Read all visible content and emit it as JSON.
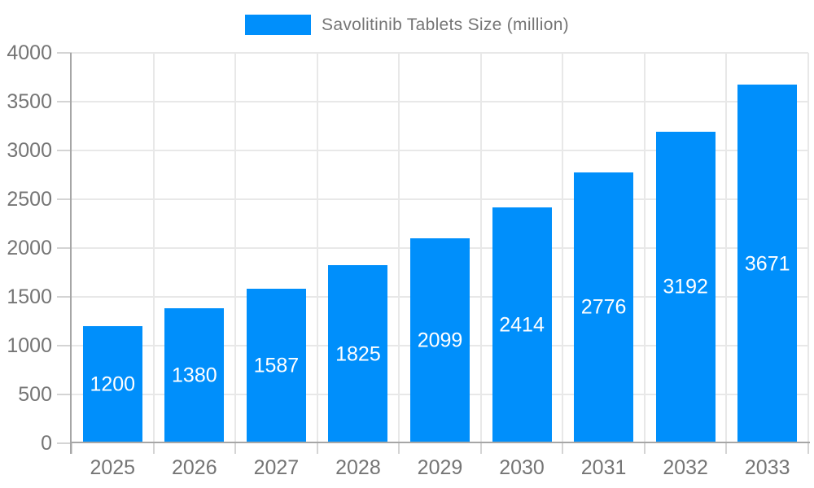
{
  "chart_data": {
    "type": "bar",
    "title": "",
    "legend": "Savolitinib Tablets Size (million)",
    "legend_position": "top",
    "categories": [
      "2025",
      "2026",
      "2027",
      "2028",
      "2029",
      "2030",
      "2031",
      "2032",
      "2033"
    ],
    "values": [
      1200,
      1380,
      1587,
      1825,
      2099,
      2414,
      2776,
      3192,
      3671
    ],
    "series": [
      {
        "name": "Savolitinib Tablets Size (million)",
        "values": [
          1200,
          1380,
          1587,
          1825,
          2099,
          2414,
          2776,
          3192,
          3671
        ]
      }
    ],
    "xlabel": "",
    "ylabel": "",
    "ylim": [
      0,
      4000
    ],
    "y_ticks": [
      0,
      500,
      1000,
      1500,
      2000,
      2500,
      3000,
      3500,
      4000
    ],
    "grid": "on",
    "value_labels_position": "inside-center"
  },
  "colors": {
    "bar": "#008FFB",
    "axis_text": "#757575",
    "value_label_text": "#ffffff",
    "grid_line": "#e8e8e8",
    "axis_line": "#a6a6a6",
    "tick_mark": "#d4d4d4",
    "background": "#ffffff"
  }
}
